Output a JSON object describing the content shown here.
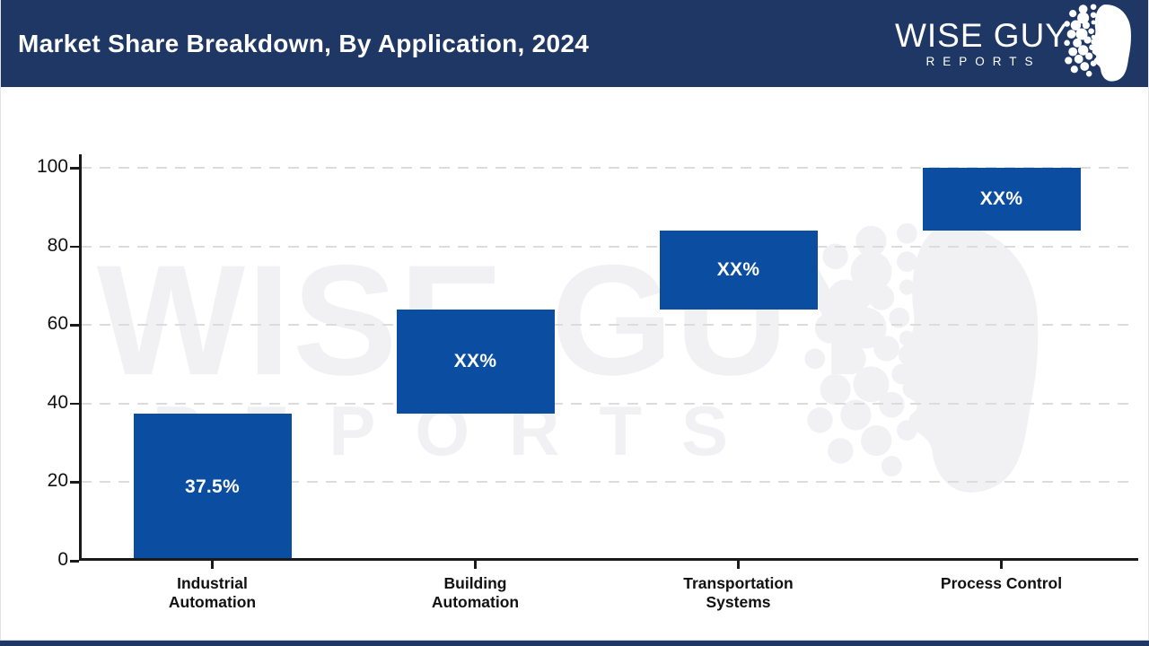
{
  "header": {
    "title": "Market Share Breakdown, By Application, 2024",
    "logo_line1": "WISE GUY",
    "logo_line2": "REPORTS",
    "bg_color": "#1f3765"
  },
  "watermark": {
    "line1": "WISE GUY",
    "line2": "REPORTS"
  },
  "chart_data": {
    "type": "bar",
    "subtype": "waterfall",
    "title": "Market Share Breakdown, By Application, 2024",
    "categories": [
      "Industrial\nAutomation",
      "Building\nAutomation",
      "Transportation\nSystems",
      "Process Control"
    ],
    "segments": [
      {
        "category": "Industrial Automation",
        "start": 0,
        "end": 37.5,
        "label": "37.5%"
      },
      {
        "category": "Building Automation",
        "start": 37.5,
        "end": 64,
        "label": "XX%"
      },
      {
        "category": "Transportation Systems",
        "start": 64,
        "end": 84,
        "label": "XX%"
      },
      {
        "category": "Process Control",
        "start": 84,
        "end": 100,
        "label": "XX%"
      }
    ],
    "ylim": [
      0,
      100
    ],
    "yticks": [
      0,
      20,
      40,
      60,
      80,
      100
    ],
    "grid": "horizontal-dashed",
    "legend": "none",
    "bar_color": "#0b4da1",
    "bar_label_color": "#ffffff",
    "axis_color": "#1a1a1a"
  }
}
